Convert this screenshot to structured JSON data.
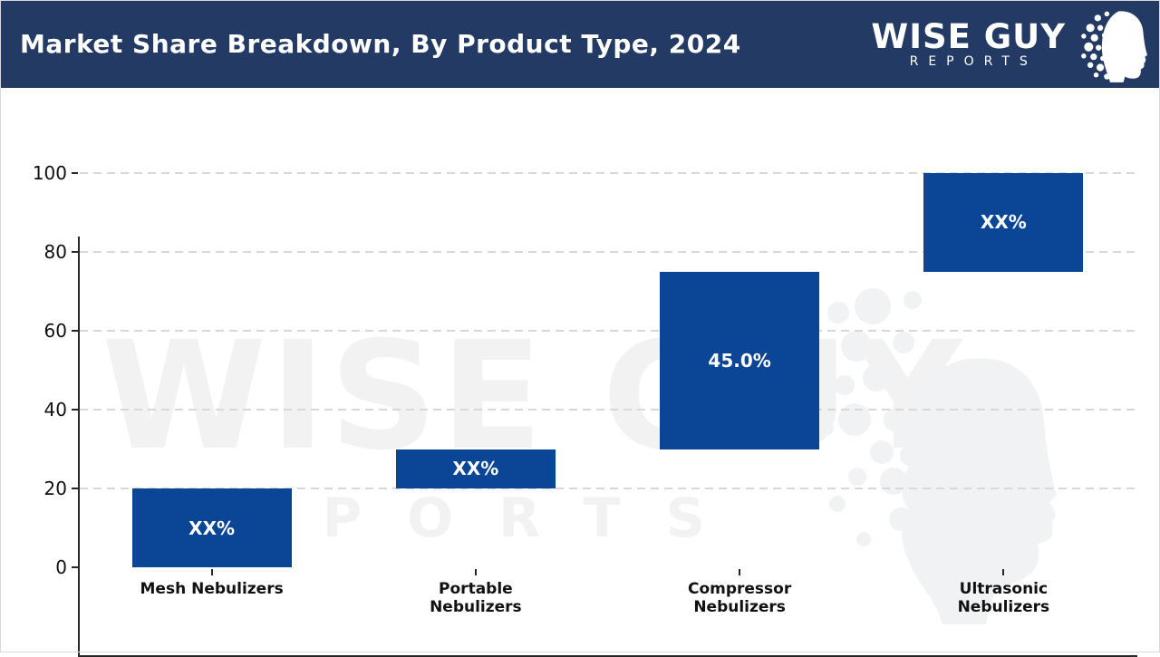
{
  "header": {
    "title": "Market Share Breakdown, By Product Type, 2024",
    "bg_color": "#223a64",
    "logo": {
      "line1": "WISE GUY",
      "line2": "REPORTS"
    }
  },
  "watermark": {
    "line1": "WISE GUY",
    "line2": "REPORTS"
  },
  "chart_data": {
    "type": "bar",
    "subtype": "floating-range bars (waterfall-style market share breakdown)",
    "title": "Market Share Breakdown, By Product Type, 2024",
    "categories": [
      "Mesh Nebulizers",
      "Portable\nNebulizers",
      "Compressor\nNebulizers",
      "Ultrasonic\nNebulizers"
    ],
    "bars": [
      {
        "category": "Mesh Nebulizers",
        "start": 0,
        "end": 20,
        "label": "XX%"
      },
      {
        "category": "Portable Nebulizers",
        "start": 20,
        "end": 30,
        "label": "XX%"
      },
      {
        "category": "Compressor Nebulizers",
        "start": 30,
        "end": 75,
        "label": "45.0%"
      },
      {
        "category": "Ultrasonic Nebulizers",
        "start": 75,
        "end": 100,
        "label": "XX%"
      }
    ],
    "yticks": [
      0,
      20,
      40,
      60,
      80,
      100
    ],
    "ylim": [
      0,
      106
    ],
    "xlabel": "",
    "ylabel": "",
    "grid": "horizontal dashed",
    "bar_color": "#0a4596",
    "bar_label_color": "#ffffff",
    "legend": "none"
  }
}
